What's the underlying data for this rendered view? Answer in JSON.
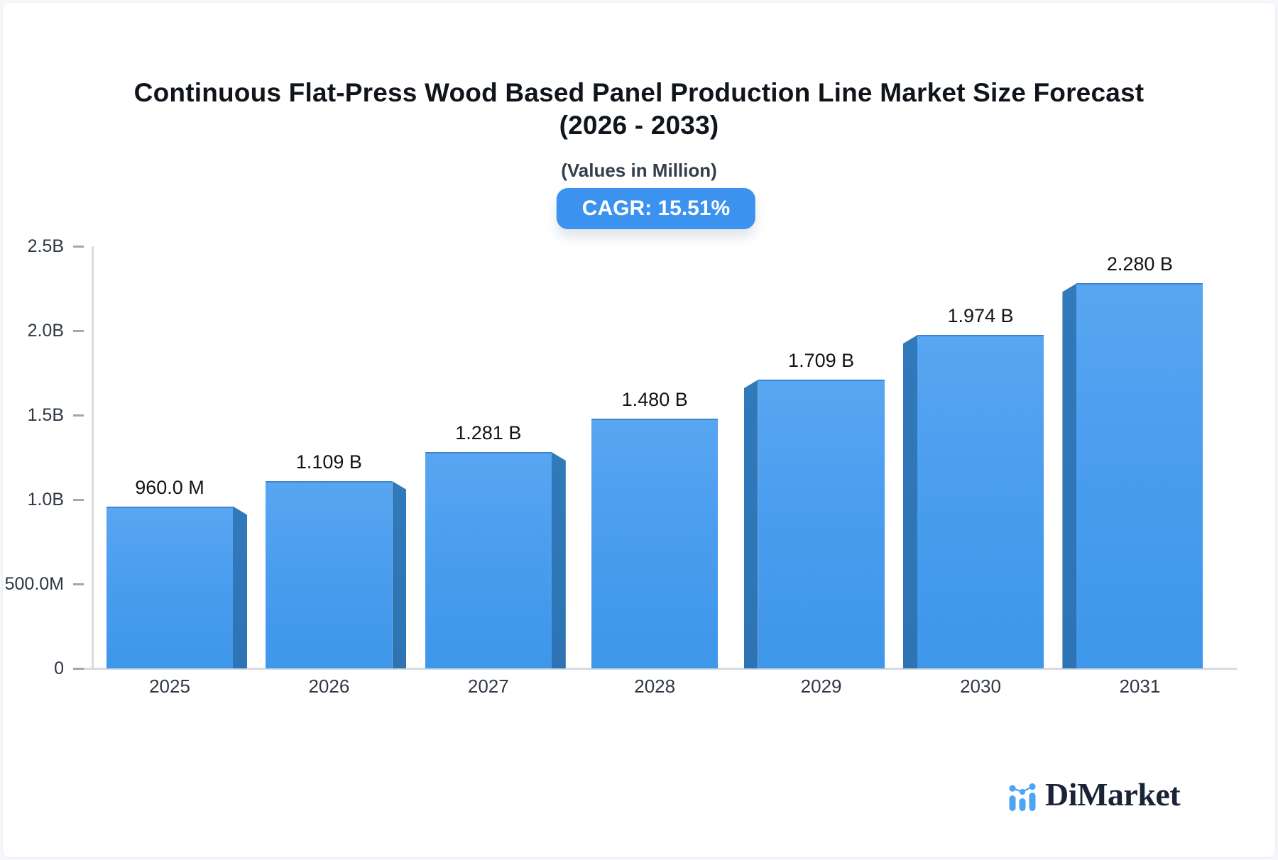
{
  "header": {
    "title_line1": "Continuous Flat-Press Wood Based Panel Production Line Market Size Forecast",
    "title_line2": "(2026 - 2033)",
    "subtitle": "(Values in Million)",
    "cagr_badge": "CAGR: 15.51%"
  },
  "chart_data": {
    "type": "bar",
    "title": "Continuous Flat-Press Wood Based Panel Production Line Market Size Forecast (2026 - 2033)",
    "subtitle": "(Values in Million)",
    "cagr_percent": 15.51,
    "categories": [
      "2025",
      "2026",
      "2027",
      "2028",
      "2029",
      "2030",
      "2031"
    ],
    "values_millions": [
      960.0,
      1109,
      1281,
      1480,
      1709,
      1974,
      2280
    ],
    "value_labels": [
      "960.0 M",
      "1.109 B",
      "1.281 B",
      "1.480 B",
      "1.709 B",
      "1.974 B",
      "2.280 B"
    ],
    "xlabel": "",
    "ylabel": "",
    "ylim_millions": [
      0,
      2500
    ],
    "yticks": [
      {
        "value": 0,
        "label": "0"
      },
      {
        "value": 500,
        "label": "500.0M"
      },
      {
        "value": 1000,
        "label": "1.0B"
      },
      {
        "value": 1500,
        "label": "1.5B"
      },
      {
        "value": 2000,
        "label": "2.0B"
      },
      {
        "value": 2500,
        "label": "2.5B"
      }
    ],
    "grid": "off",
    "legend": "none",
    "bar_style": {
      "effect": "3d",
      "front_top_color": "#58a6f1",
      "front_bottom_color": "#3e97e9",
      "side_color": "#2f76b8"
    }
  },
  "branding": {
    "logo_text": "DiMarket",
    "logo_icon": "bar-chart-logo-icon",
    "logo_icon_color": "#4da3f5",
    "logo_text_color": "#1b2337"
  },
  "colors": {
    "badge_bg": "#3c92ef",
    "badge_text": "#ffffff",
    "axis_line": "#d8dbdf",
    "tick_text": "#2e3742",
    "title_text": "#10151c"
  }
}
